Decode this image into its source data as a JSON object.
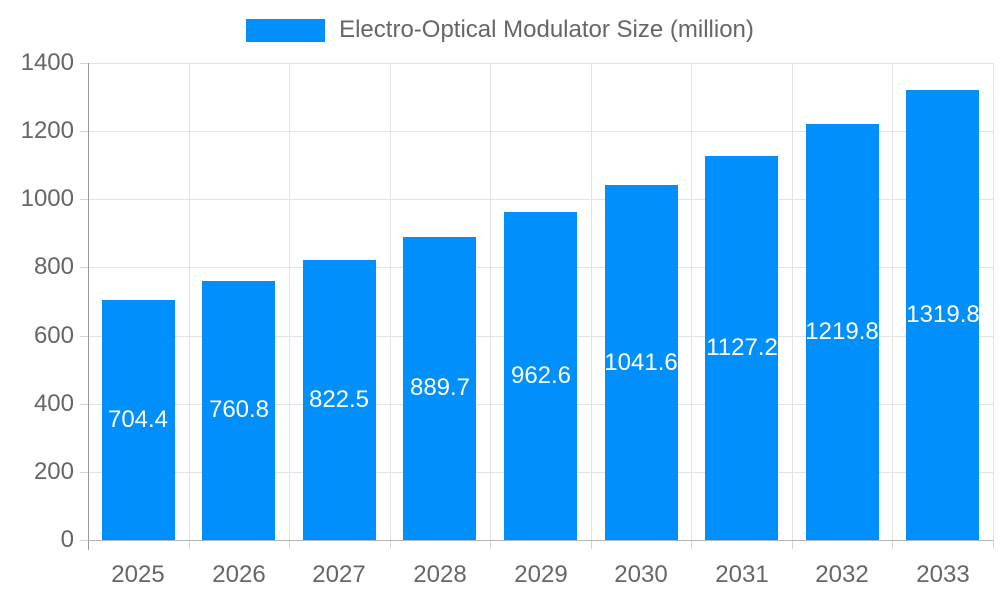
{
  "legend": {
    "label": "Electro-Optical Modulator Size (million)"
  },
  "colors": {
    "bar": "#008FFB",
    "axis_label": "#666666",
    "grid": "#e3e3e3",
    "y_axis_line": "#999999",
    "x_axis_line": "#b5b5b5",
    "tick": "#d5d5d5",
    "value_label": "#ffffff",
    "background": "#ffffff"
  },
  "chart_data": {
    "type": "bar",
    "title": "Electro-Optical Modulator Size (million)",
    "series_name": "Electro-Optical Modulator Size (million)",
    "categories": [
      "2025",
      "2026",
      "2027",
      "2028",
      "2029",
      "2030",
      "2031",
      "2032",
      "2033"
    ],
    "values": [
      704.4,
      760.8,
      822.5,
      889.7,
      962.6,
      1041.6,
      1127.2,
      1219.8,
      1319.8
    ],
    "xlabel": "",
    "ylabel": "",
    "ylim": [
      0,
      1400
    ],
    "ytick_step": 200,
    "ytick_labels": [
      "0",
      "200",
      "400",
      "600",
      "800",
      "1000",
      "1200",
      "1400"
    ],
    "grid": true,
    "legend_position": "top",
    "value_label_position": "inside-middle",
    "value_label_color": "#ffffff"
  }
}
